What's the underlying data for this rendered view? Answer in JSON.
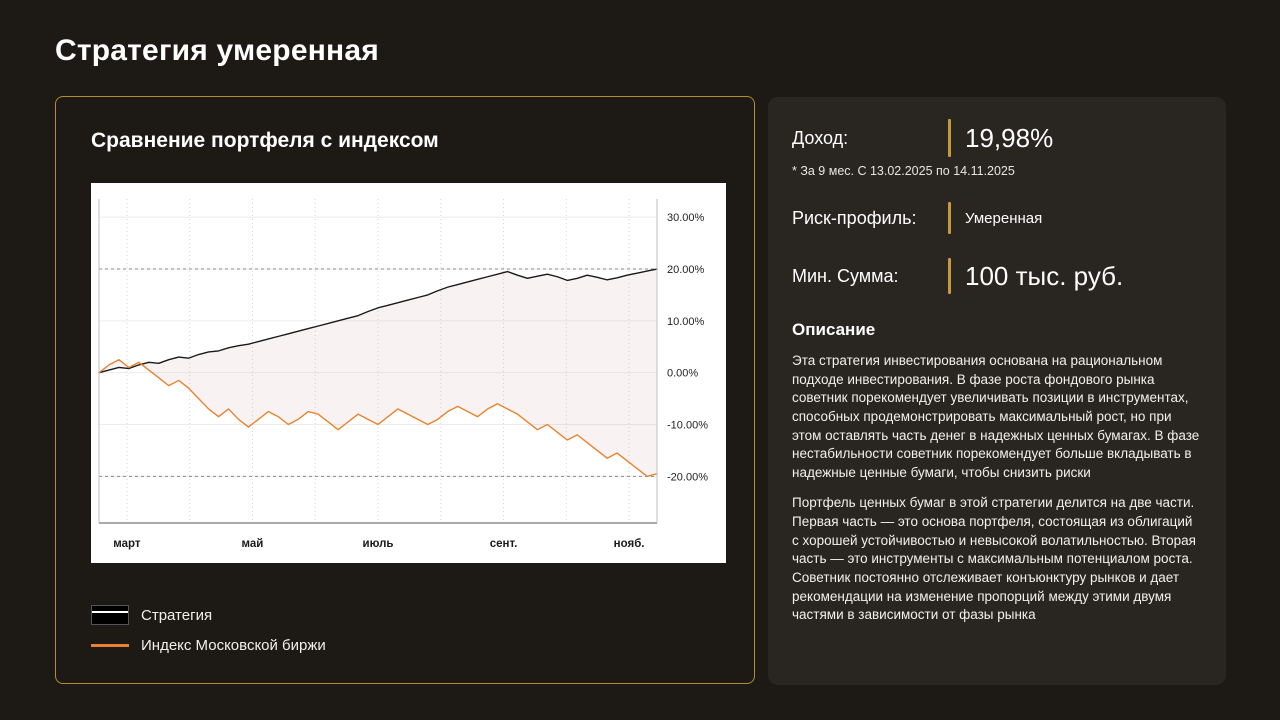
{
  "page": {
    "title": "Стратегия умеренная"
  },
  "chart_card": {
    "title": "Сравнение портфеля с индексом",
    "legend": [
      {
        "label": "Стратегия",
        "color": "#1a1a1a",
        "type": "box"
      },
      {
        "label": "Индекс Московской биржи",
        "color": "#e8832f",
        "type": "line"
      }
    ]
  },
  "chart_data": {
    "type": "line",
    "title": "Сравнение портфеля с индексом",
    "xlabel": "",
    "ylabel": "",
    "x_tick_labels": [
      "март",
      "май",
      "июль",
      "сент.",
      "нояб."
    ],
    "y_ticks": [
      30,
      20,
      10,
      0,
      -10,
      -20
    ],
    "y_tick_labels": [
      "30.00%",
      "20.00%",
      "10.00%",
      "0.00%",
      "-10.00%",
      "-20.00%"
    ],
    "ylim": [
      -29,
      33.5
    ],
    "reference_lines": [
      20,
      -20
    ],
    "grid": true,
    "legend_position": "below",
    "series": [
      {
        "name": "Стратегия",
        "color": "#1a1a1a",
        "values": [
          0,
          0.5,
          1,
          0.8,
          1.5,
          2,
          1.8,
          2.5,
          3,
          2.8,
          3.5,
          4,
          4.2,
          4.8,
          5.2,
          5.5,
          6,
          6.5,
          7,
          7.5,
          8,
          8.5,
          9,
          9.5,
          10,
          10.5,
          11,
          11.8,
          12.5,
          13,
          13.5,
          14,
          14.5,
          15,
          15.8,
          16.5,
          17,
          17.5,
          18,
          18.5,
          19,
          19.5,
          18.8,
          18.2,
          18.6,
          19,
          18.5,
          17.8,
          18.2,
          18.8,
          18.4,
          17.9,
          18.3,
          18.8,
          19.2,
          19.6,
          19.98
        ]
      },
      {
        "name": "Индекс Московской биржи",
        "color": "#e8832f",
        "values": [
          0,
          1.5,
          2.5,
          1.0,
          2.0,
          0.5,
          -1,
          -2.5,
          -1.5,
          -3,
          -5,
          -7,
          -8.5,
          -7,
          -9,
          -10.5,
          -9,
          -7.5,
          -8.5,
          -10,
          -9,
          -7.5,
          -8,
          -9.5,
          -11,
          -9.5,
          -8,
          -9,
          -10,
          -8.5,
          -7,
          -8,
          -9,
          -10,
          -9,
          -7.5,
          -6.5,
          -7.5,
          -8.5,
          -7,
          -6,
          -7,
          -8,
          -9.5,
          -11,
          -10,
          -11.5,
          -13,
          -12,
          -13.5,
          -15,
          -16.5,
          -15.5,
          -17,
          -18.5,
          -20,
          -19.5
        ]
      }
    ]
  },
  "info_card": {
    "income_label": "Доход:",
    "income_value": "19,98%",
    "income_note": "* За 9 мес. С 13.02.2025 по 14.11.2025",
    "risk_label": "Риск-профиль:",
    "risk_value": "Умеренная",
    "min_label": "Мин. Сумма:",
    "min_value": "100 тыс. руб.",
    "description_title": "Описание",
    "description_paragraphs": [
      "Эта стратегия инвестирования основана на рациональном подходе инвестирования. В фазе роста фондового рынка советник порекомендует увеличивать позиции в инструментах, способных продемонстрировать максимальный рост, но при этом оставлять часть денег в надежных ценных бумагах. В фазе нестабильности советник порекомендует больше вкладывать в надежные ценные бумаги, чтобы снизить риски",
      "Портфель ценных бумаг в этой стратегии делится на две части. Первая часть — это основа портфеля, состоящая из облигаций с хорошей устойчивостью и невысокой волатильностью. Вторая часть — это инструменты с максимальным потенциалом роста. Советник постоянно отслеживает конъюнктуру рынков и дает рекомендации на изменение пропорций между этими двумя частями в зависимости от фазы рынка"
    ]
  },
  "colors": {
    "accent_gold": "#c49a3a",
    "card_border_gold": "#b08d2e",
    "strategy_line": "#1a1a1a",
    "index_line": "#e8832f",
    "page_bg": "#1d1a16",
    "info_card_bg": "#292521"
  }
}
